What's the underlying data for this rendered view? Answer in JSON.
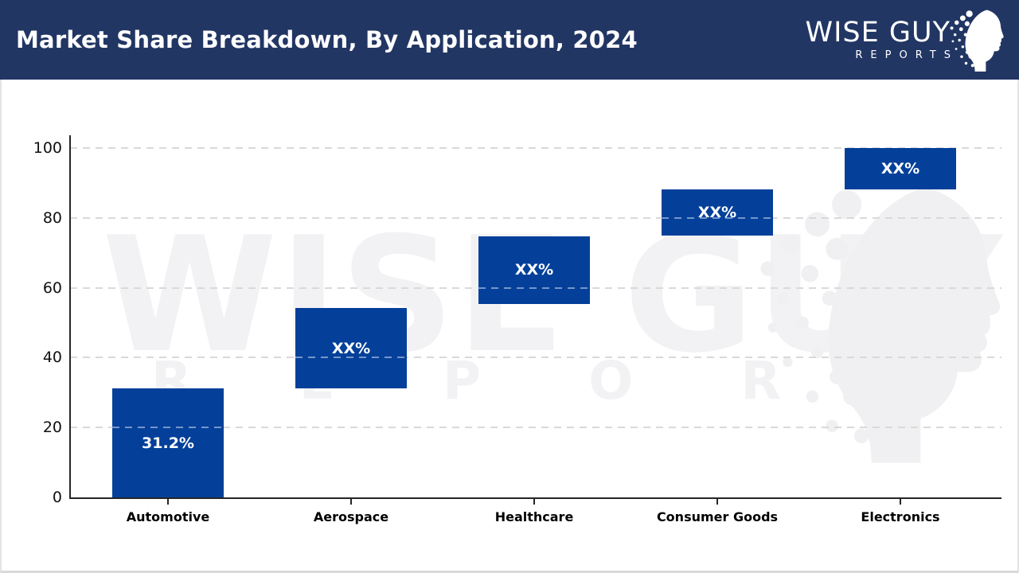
{
  "header": {
    "title": "Market Share Breakdown, By Application, 2024",
    "bg_color": "#223664",
    "logo": {
      "line1": "WISE GUY",
      "line2": "REPORTS"
    }
  },
  "watermark": {
    "line1": "WISE GUY",
    "line2": "R E P O R T S"
  },
  "chart_data": {
    "type": "bar",
    "subtype": "floating-waterfall",
    "title": "Market Share Breakdown, By Application, 2024",
    "xlabel": "",
    "ylabel": "",
    "categories": [
      "Automotive",
      "Aerospace",
      "Healthcare",
      "Consumer Goods",
      "Electronics"
    ],
    "segments": [
      {
        "category": "Automotive",
        "base": 0,
        "top": 31.2,
        "label": "31.2%"
      },
      {
        "category": "Aerospace",
        "base": 31.2,
        "top": 54.2,
        "label": "XX%"
      },
      {
        "category": "Healthcare",
        "base": 55.4,
        "top": 74.7,
        "label": "XX%"
      },
      {
        "category": "Consumer Goods",
        "base": 74.9,
        "top": 88.2,
        "label": "XX%"
      },
      {
        "category": "Electronics",
        "base": 88.2,
        "top": 100,
        "label": "XX%"
      }
    ],
    "y_ticks": [
      0,
      20,
      40,
      60,
      80,
      100
    ],
    "ylim": [
      0,
      105
    ],
    "grid": true,
    "grid_style": "dashed",
    "legend": false,
    "bar_color": "#04409a",
    "grid_color": "#d9d9d9",
    "axis_color": "#262626",
    "bar_label_color": "#ffffff"
  }
}
